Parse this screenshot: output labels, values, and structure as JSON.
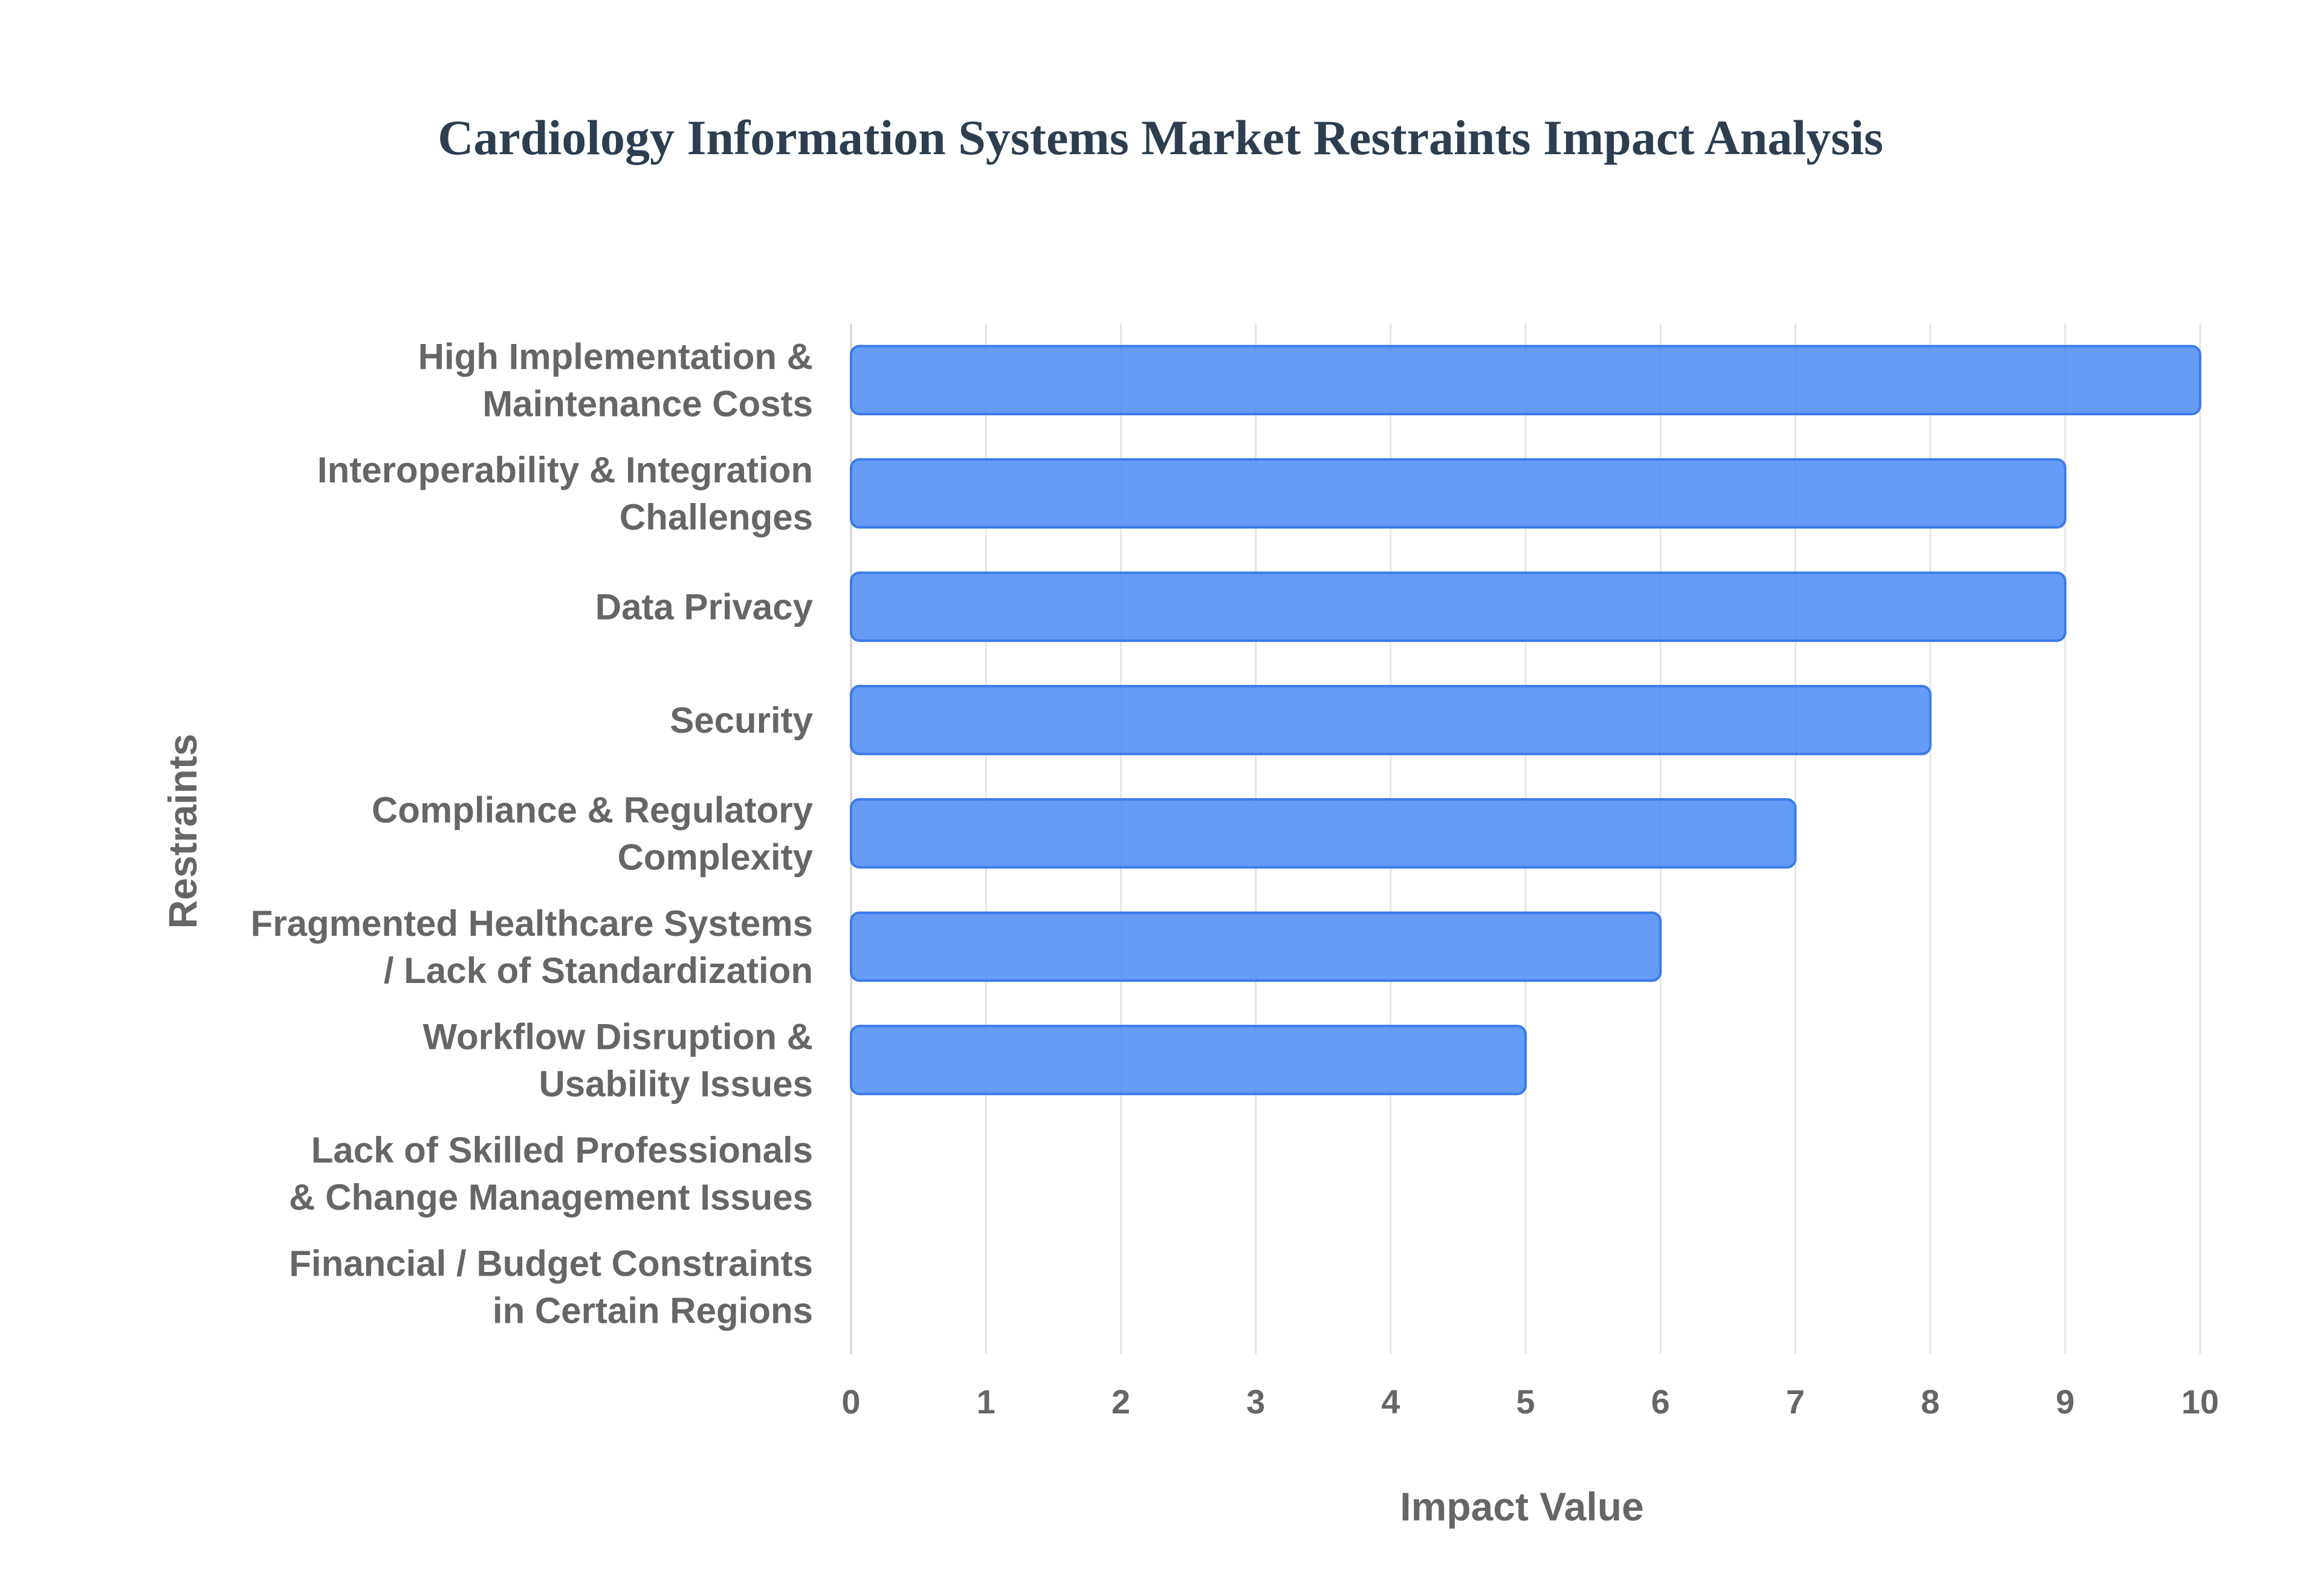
{
  "chart_data": {
    "type": "bar",
    "orientation": "horizontal",
    "title": "Cardiology Information Systems Market Restraints Impact Analysis",
    "xlabel": "Impact Value",
    "ylabel": "Restraints",
    "xlim": [
      0,
      10
    ],
    "x_ticks": [
      "0",
      "1",
      "2",
      "3",
      "4",
      "5",
      "6",
      "7",
      "8",
      "9",
      "10"
    ],
    "grid": true,
    "bar_color": "#4f8ef7",
    "categories": [
      [
        "High Implementation &",
        "Maintenance Costs"
      ],
      [
        "Interoperability & Integration",
        "Challenges"
      ],
      [
        "Data Privacy"
      ],
      [
        "Security"
      ],
      [
        "Compliance & Regulatory",
        "Complexity"
      ],
      [
        "Fragmented Healthcare Systems",
        "/ Lack of Standardization"
      ],
      [
        "Workflow Disruption &",
        "Usability Issues"
      ],
      [
        "Lack of Skilled Professionals",
        "& Change Management Issues"
      ],
      [
        "Financial / Budget Constraints",
        "in Certain Regions"
      ]
    ],
    "values": [
      10,
      9,
      9,
      8,
      7,
      6,
      5,
      0,
      0
    ]
  }
}
